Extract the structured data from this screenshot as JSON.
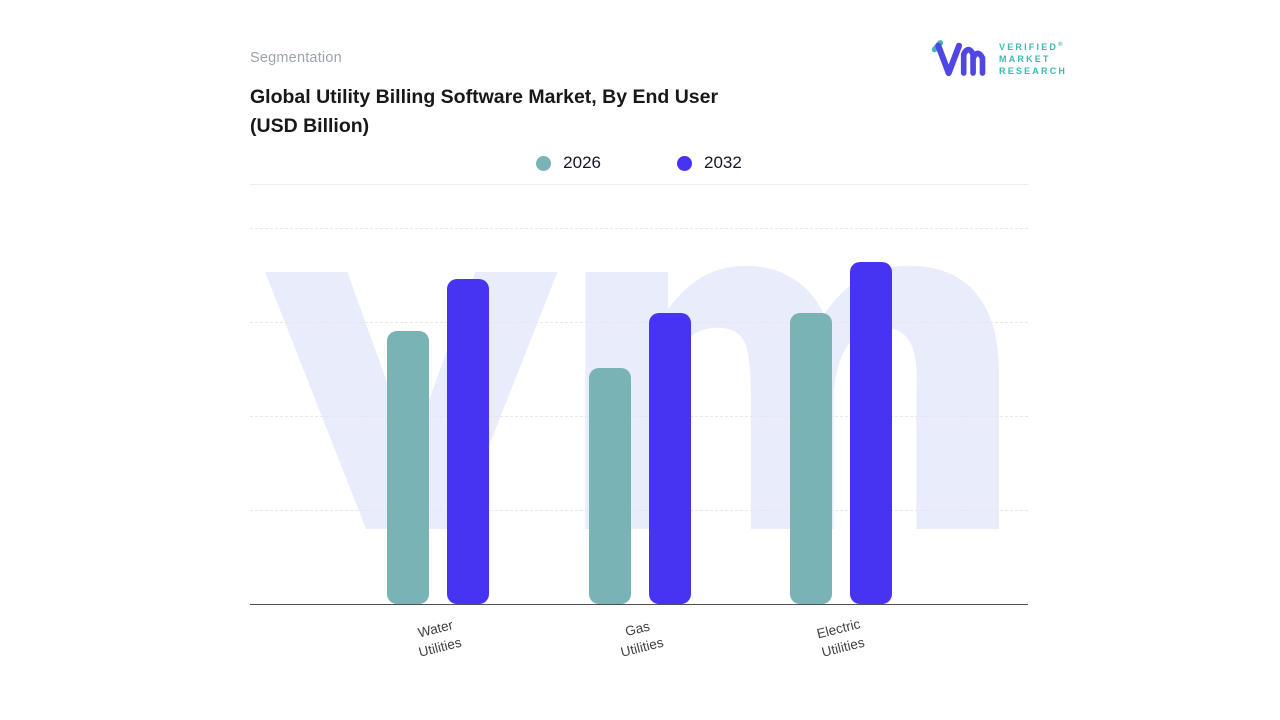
{
  "page": {
    "background": "#ffffff"
  },
  "header": {
    "eyebrow": "Segmentation",
    "title_line1": "Global Utility Billing Software Market, By End User",
    "title_line2": "(USD Billion)"
  },
  "brand": {
    "line1": "VERIFIED",
    "line2": "MARKET",
    "line3": "RESEARCH",
    "registered": "®"
  },
  "watermark_text": "vmr",
  "colors": {
    "series_2026": "#79b3b6",
    "series_2032": "#4733f2",
    "axis_line": "#505058",
    "gridline": "#e7e7ea",
    "title": "#18181b",
    "eyebrow": "#9ca3af",
    "watermark": "#e9ecfb",
    "brand_teal": "#3eb8b2",
    "brand_purple": "#4f46e5"
  },
  "chart_data": {
    "type": "bar",
    "title": "Global Utility Billing Software Market, By End User (USD Billion)",
    "ylabel": "USD Billion",
    "categories": [
      "Water\nUtilities",
      "Gas\nUtilities",
      "Electric\nUtilities"
    ],
    "series": [
      {
        "name": "2026",
        "color": "#79b3b6",
        "values": [
          8.0,
          6.9,
          8.5
        ]
      },
      {
        "name": "2032",
        "color": "#4733f2",
        "values": [
          9.5,
          8.5,
          10.0
        ]
      }
    ],
    "ylim": [
      0,
      11
    ],
    "y_axis_labels_visible": false,
    "grid": "horizontal-dashed",
    "legend_position": "top-center"
  }
}
